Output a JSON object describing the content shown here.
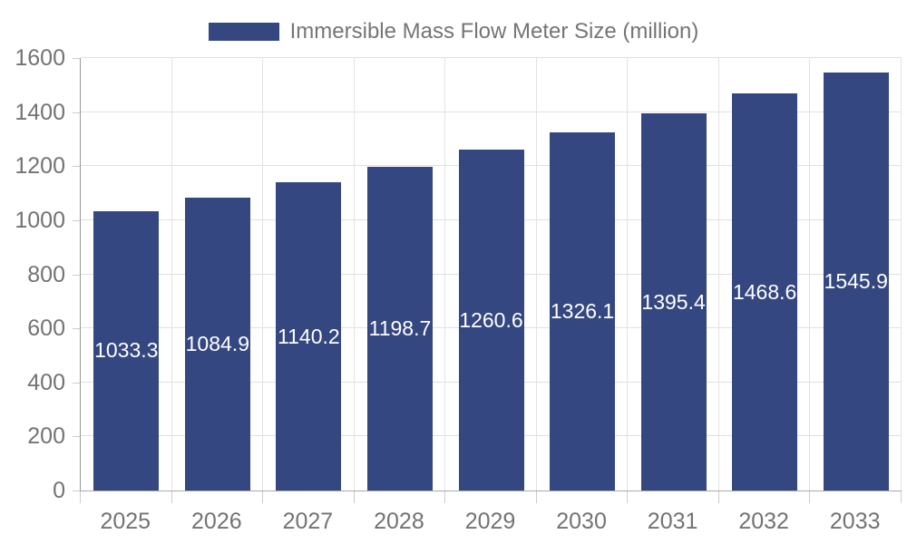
{
  "legend": {
    "label": "Immersible Mass Flow Meter Size (million)",
    "swatch_color": "#344780"
  },
  "chart_data": {
    "type": "bar",
    "title": "Immersible Mass Flow Meter Size (million)",
    "categories": [
      "2025",
      "2026",
      "2027",
      "2028",
      "2029",
      "2030",
      "2031",
      "2032",
      "2033"
    ],
    "series": [
      {
        "name": "Immersible Mass Flow Meter Size (million)",
        "values": [
          1033.3,
          1084.9,
          1140.2,
          1198.7,
          1260.6,
          1326.1,
          1395.4,
          1468.6,
          1545.9
        ]
      }
    ],
    "data_labels": [
      "1033.3",
      "1084.9",
      "1140.2",
      "1198.7",
      "1260.6",
      "1326.1",
      "1395.4",
      "1468.6",
      "1545.9"
    ],
    "xlabel": "",
    "ylabel": "",
    "ylim": [
      0,
      1600
    ],
    "ytick_step": 200,
    "yticks": [
      "0",
      "200",
      "400",
      "600",
      "800",
      "1000",
      "1200",
      "1400",
      "1600"
    ],
    "grid": true,
    "legend_position": "top-center",
    "colors": {
      "bar": "#344780",
      "bar_value_label": "#ffffff",
      "axis_line": "#999999",
      "gridline": "#e0e0e0",
      "tick_label": "#737373",
      "legend_text": "#757575",
      "background": "#ffffff"
    }
  }
}
